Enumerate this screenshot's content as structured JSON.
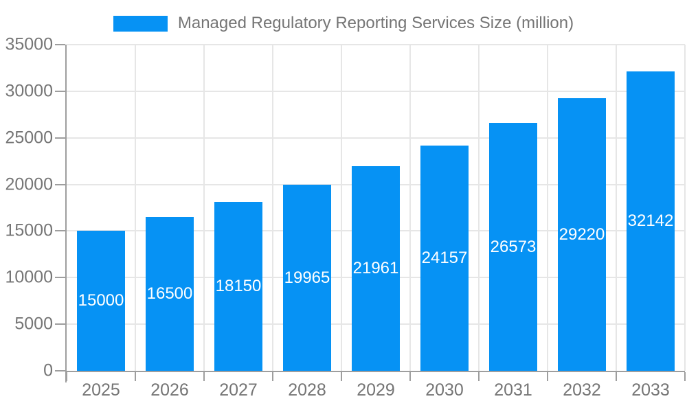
{
  "chart_data": {
    "type": "bar",
    "title": "Managed Regulatory Reporting Services Size (million)",
    "categories": [
      "2025",
      "2026",
      "2027",
      "2028",
      "2029",
      "2030",
      "2031",
      "2032",
      "2033"
    ],
    "values": [
      15000,
      16500,
      18150,
      19965,
      21961,
      24157,
      26573,
      29220,
      32142
    ],
    "xlabel": "",
    "ylabel": "",
    "ylim": [
      0,
      35000
    ],
    "ytick_step": 5000,
    "grid": true,
    "legend_position": "top",
    "value_label_position": "inside-center",
    "colors": {
      "bar": "#0692f4",
      "axis": "#9e9e9e",
      "grid": "#e6e6e6",
      "tick_text": "#757575",
      "value_label_text": "#ffffff",
      "background": "#ffffff"
    }
  }
}
